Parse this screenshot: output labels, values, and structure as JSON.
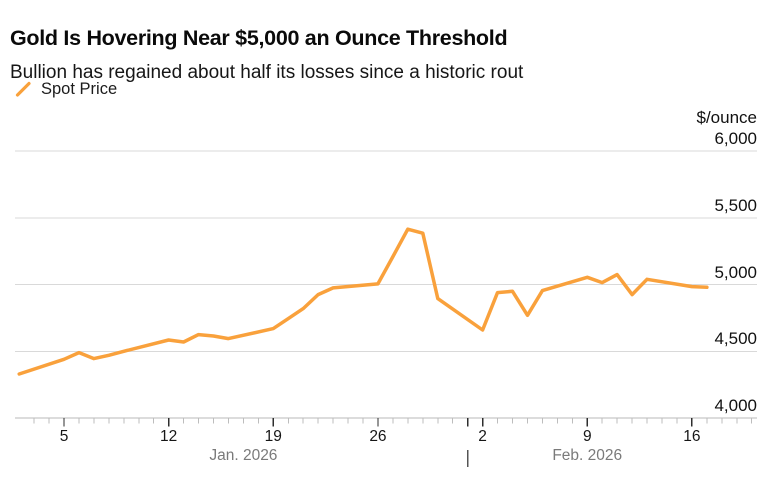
{
  "header": {
    "title": "Gold Is Hovering Near $5,000 an Ounce Threshold",
    "subtitle": "Bullion has regained about half its losses since a historic rout"
  },
  "legend": {
    "label": "Spot Price",
    "color": "#F9A13C"
  },
  "colors": {
    "gridline": "#d9d9d9",
    "axis_line": "#b8b8b8",
    "minor_tick": "#bdbdbd",
    "major_tick": "#2e2e2e",
    "month_separator": "#555555",
    "line": "#F9A13C"
  },
  "chart_data": {
    "type": "line",
    "title": "Gold Is Hovering Near $5,000 an Ounce Threshold",
    "subtitle": "Bullion has regained about half its losses since a historic rout",
    "unit_label": "$/ounce",
    "legend_position": "top-left",
    "grid": true,
    "y_axis": {
      "min": 4000,
      "max": 6000,
      "step": 500,
      "baseline_value": 4000,
      "ticks": [
        {
          "value": 4000,
          "label": "4,000"
        },
        {
          "value": 4500,
          "label": "4,500"
        },
        {
          "value": 5000,
          "label": "5,000"
        },
        {
          "value": 5500,
          "label": "5,500"
        },
        {
          "value": 6000,
          "label": "6,000"
        }
      ]
    },
    "x_axis": {
      "range_note": "days indexed from Jan 1 2026 (Jan 1 = 1, Feb 1 = 32)",
      "tick_labels": [
        {
          "day": 5,
          "label": "5"
        },
        {
          "day": 12,
          "label": "12"
        },
        {
          "day": 19,
          "label": "19"
        },
        {
          "day": 26,
          "label": "26"
        },
        {
          "day": 33,
          "label": "2"
        },
        {
          "day": 40,
          "label": "9"
        },
        {
          "day": 47,
          "label": "16"
        }
      ],
      "minor_tick_day_start": 3,
      "minor_tick_day_end": 51,
      "month_separator_day": 32,
      "months": [
        {
          "label": "Jan. 2026",
          "center_day": 17
        },
        {
          "label": "Feb. 2026",
          "center_day": 40
        }
      ]
    },
    "series": [
      {
        "name": "Spot Price",
        "color": "#F9A13C",
        "points": [
          {
            "date": "Jan 2",
            "day": 2,
            "value": 4330
          },
          {
            "date": "Jan 5",
            "day": 5,
            "value": 4440
          },
          {
            "date": "Jan 6",
            "day": 6,
            "value": 4490
          },
          {
            "date": "Jan 7",
            "day": 7,
            "value": 4445
          },
          {
            "date": "Jan 8",
            "day": 8,
            "value": 4470
          },
          {
            "date": "Jan 9",
            "day": 9,
            "value": 4500
          },
          {
            "date": "Jan 12",
            "day": 12,
            "value": 4585
          },
          {
            "date": "Jan 13",
            "day": 13,
            "value": 4570
          },
          {
            "date": "Jan 14",
            "day": 14,
            "value": 4625
          },
          {
            "date": "Jan 15",
            "day": 15,
            "value": 4615
          },
          {
            "date": "Jan 16",
            "day": 16,
            "value": 4595
          },
          {
            "date": "Jan 19",
            "day": 19,
            "value": 4670
          },
          {
            "date": "Jan 20",
            "day": 20,
            "value": 4745
          },
          {
            "date": "Jan 21",
            "day": 21,
            "value": 4820
          },
          {
            "date": "Jan 22",
            "day": 22,
            "value": 4925
          },
          {
            "date": "Jan 23",
            "day": 23,
            "value": 4975
          },
          {
            "date": "Jan 26",
            "day": 26,
            "value": 5005
          },
          {
            "date": "Jan 27",
            "day": 27,
            "value": 5210
          },
          {
            "date": "Jan 28",
            "day": 28,
            "value": 5415
          },
          {
            "date": "Jan 29",
            "day": 29,
            "value": 5385
          },
          {
            "date": "Jan 30",
            "day": 30,
            "value": 4895
          },
          {
            "date": "Feb 2",
            "day": 33,
            "value": 4660
          },
          {
            "date": "Feb 3",
            "day": 34,
            "value": 4940
          },
          {
            "date": "Feb 4",
            "day": 35,
            "value": 4950
          },
          {
            "date": "Feb 5",
            "day": 36,
            "value": 4770
          },
          {
            "date": "Feb 6",
            "day": 37,
            "value": 4955
          },
          {
            "date": "Feb 9",
            "day": 40,
            "value": 5055
          },
          {
            "date": "Feb 10",
            "day": 41,
            "value": 5015
          },
          {
            "date": "Feb 11",
            "day": 42,
            "value": 5075
          },
          {
            "date": "Feb 12",
            "day": 43,
            "value": 4925
          },
          {
            "date": "Feb 13",
            "day": 44,
            "value": 5040
          },
          {
            "date": "Feb 16",
            "day": 47,
            "value": 4985
          },
          {
            "date": "Feb 17",
            "day": 48,
            "value": 4980
          }
        ]
      }
    ]
  }
}
